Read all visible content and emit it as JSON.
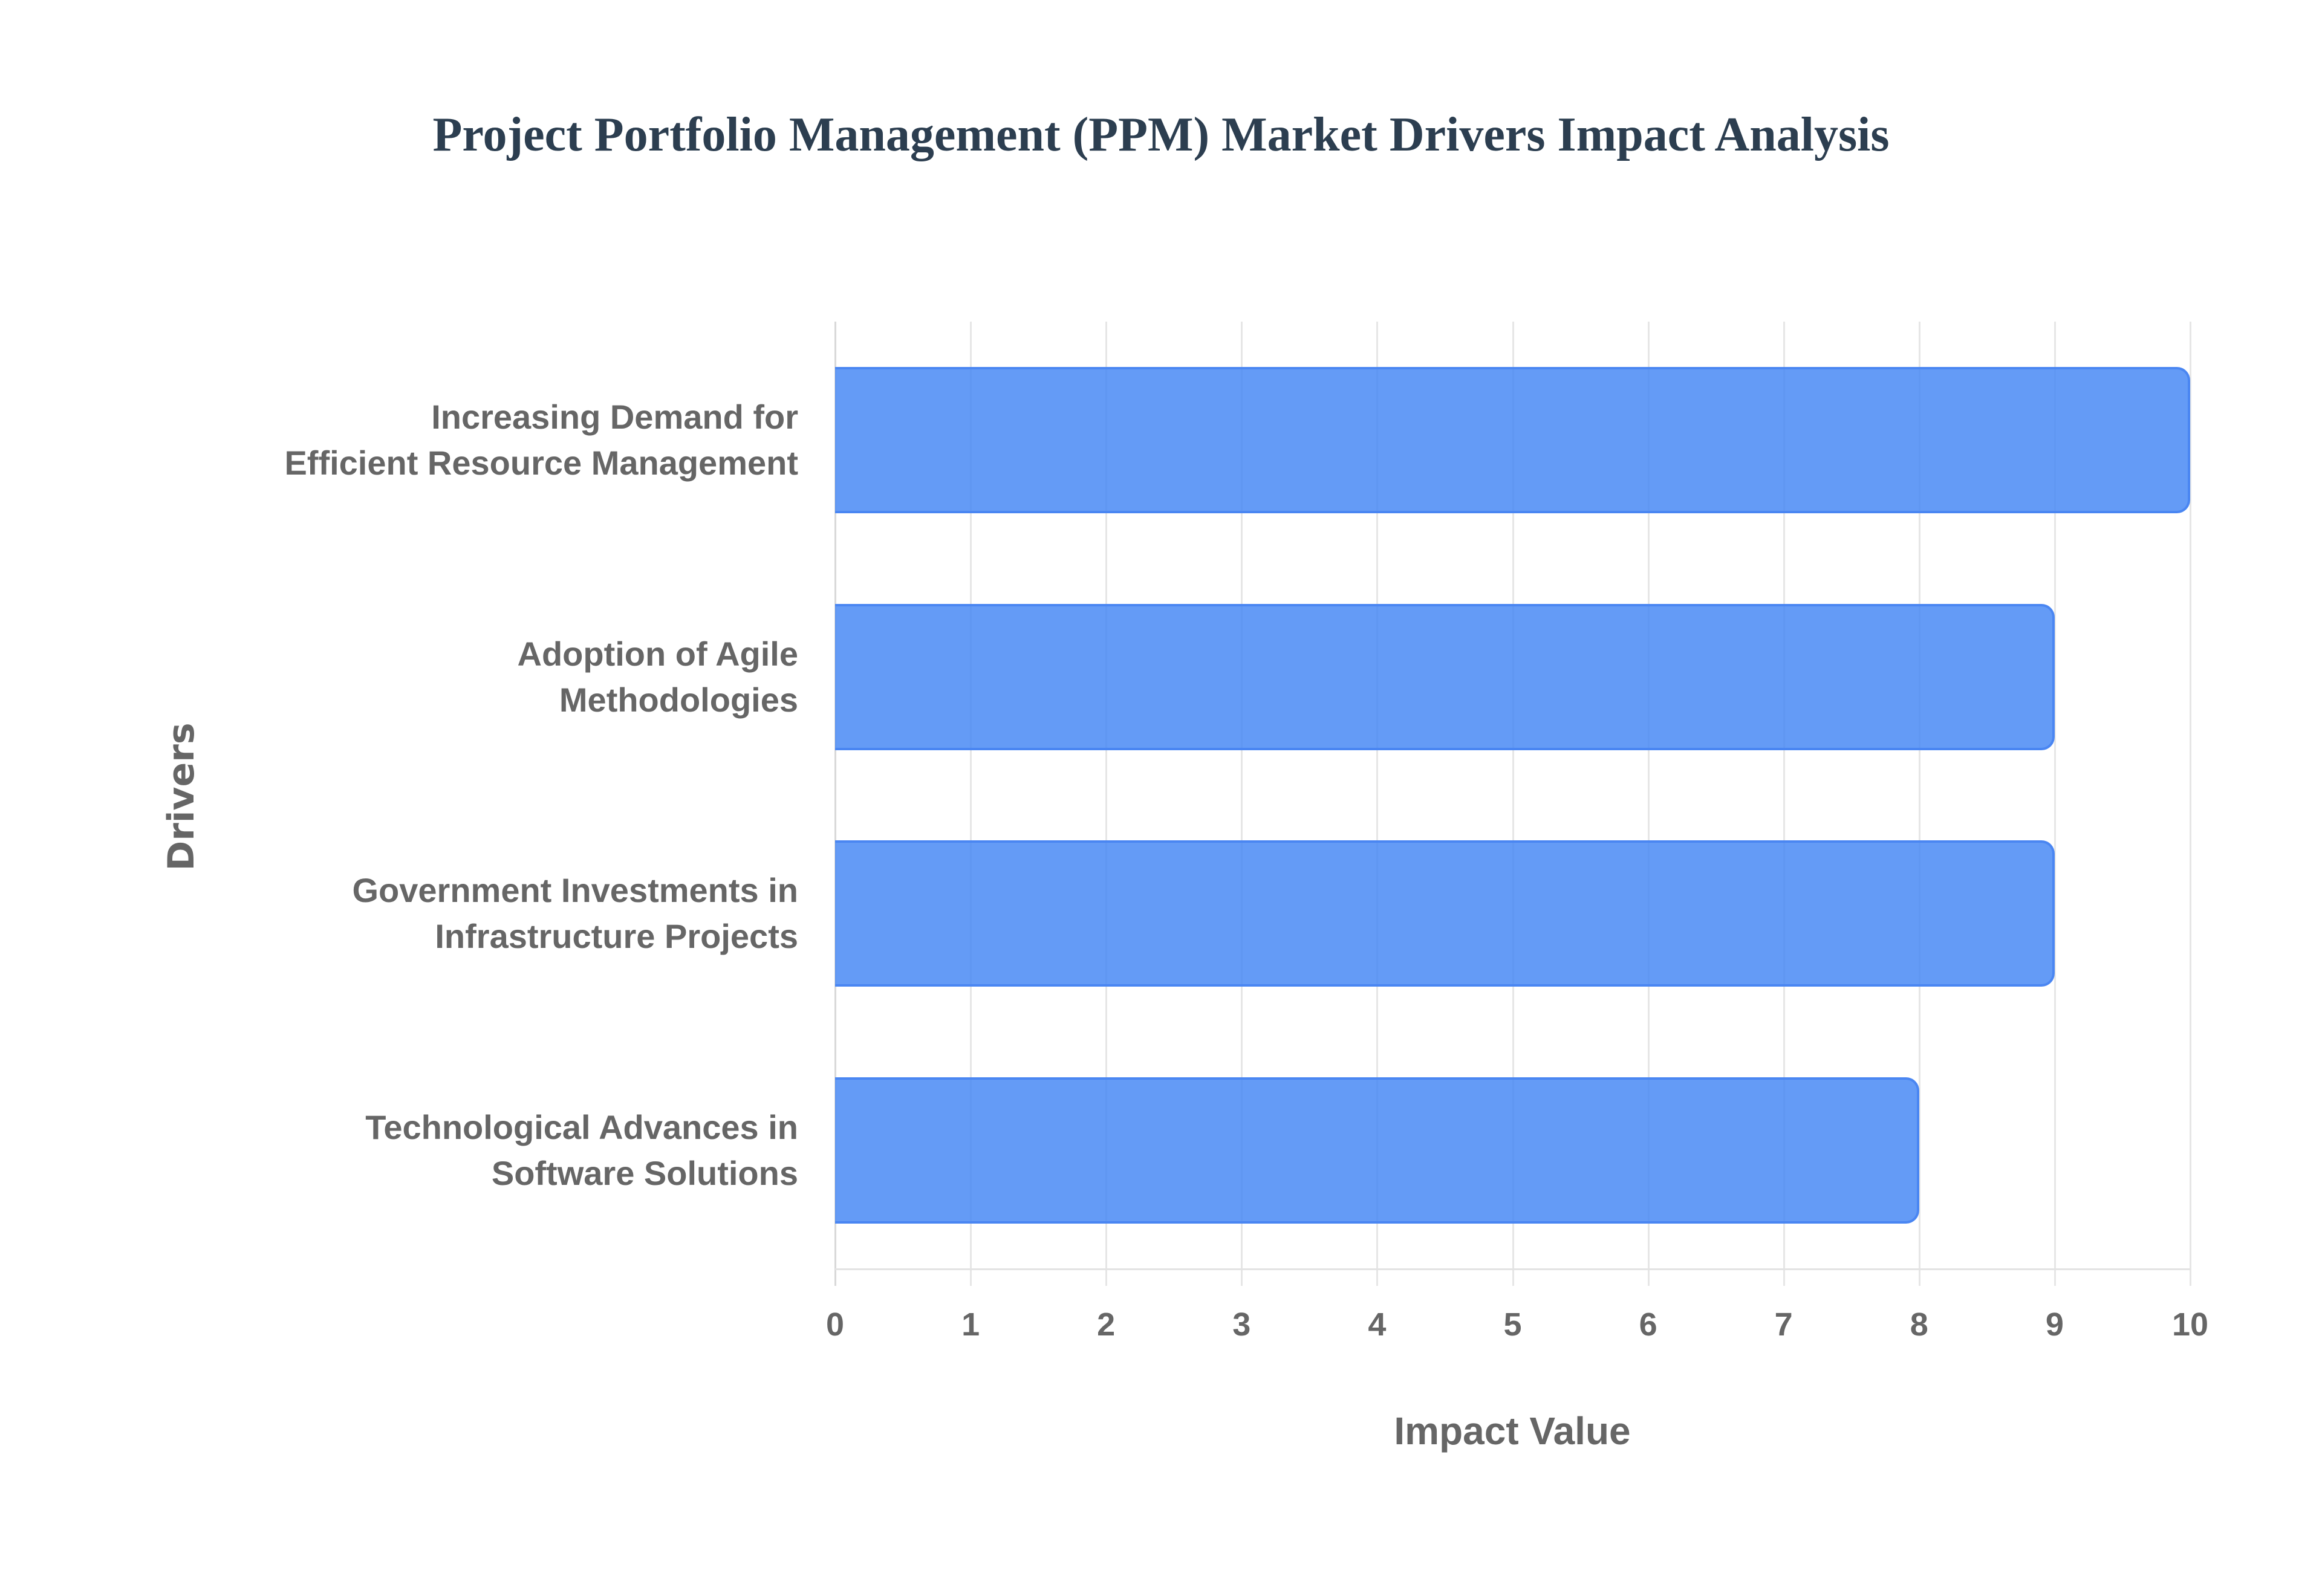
{
  "title": "Project Portfolio Management (PPM) Market Drivers Impact Analysis",
  "axes": {
    "x_label": "Impact Value",
    "y_label": "Drivers",
    "x_ticks": [
      "0",
      "1",
      "2",
      "3",
      "4",
      "5",
      "6",
      "7",
      "8",
      "9",
      "10"
    ]
  },
  "categories": [
    {
      "line1": "Increasing Demand for",
      "line2": "Efficient Resource Management",
      "value": 10
    },
    {
      "line1": "Adoption of Agile",
      "line2": "Methodologies",
      "value": 9
    },
    {
      "line1": "Government Investments in",
      "line2": "Infrastructure Projects",
      "value": 9
    },
    {
      "line1": "Technological Advances in",
      "line2": "Software Solutions",
      "value": 8
    }
  ],
  "colors": {
    "bar_fill": "#6199F5",
    "bar_border": "#4285F4",
    "title": "#2c3e50",
    "axis_text": "#666666",
    "grid": "#e6e6e6"
  },
  "chart_data": {
    "type": "bar",
    "orientation": "horizontal",
    "title": "Project Portfolio Management (PPM) Market Drivers Impact Analysis",
    "categories": [
      "Increasing Demand for Efficient Resource Management",
      "Adoption of Agile Methodologies",
      "Government Investments in Infrastructure Projects",
      "Technological Advances in Software Solutions"
    ],
    "values": [
      10,
      9,
      9,
      8
    ],
    "xlabel": "Impact Value",
    "ylabel": "Drivers",
    "xlim": [
      0,
      10
    ],
    "x_ticks": [
      0,
      1,
      2,
      3,
      4,
      5,
      6,
      7,
      8,
      9,
      10
    ],
    "grid": true,
    "legend": false
  }
}
